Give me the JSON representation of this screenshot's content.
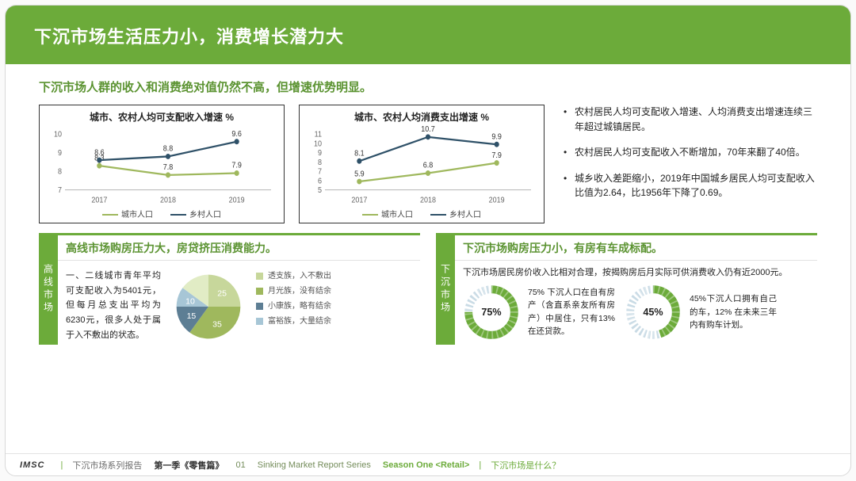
{
  "header": {
    "title": "下沉市场生活压力小，消费增长潜力大"
  },
  "subtitle": "下沉市场人群的收入和消费绝对值仍然不高，但增速优势明显。",
  "chart1": {
    "type": "line",
    "title": "城市、农村人均可支配收入增速 %",
    "categories": [
      "2017",
      "2018",
      "2019"
    ],
    "series": [
      {
        "name": "城市人口",
        "color": "#9fb85d",
        "values": [
          8.3,
          7.8,
          7.9
        ]
      },
      {
        "name": "乡村人口",
        "color": "#2f5168",
        "values": [
          8.6,
          8.8,
          9.6
        ]
      }
    ],
    "ymin": 7,
    "ymax": 10,
    "yticks": [
      7,
      8,
      9,
      10
    ],
    "line_width": 2,
    "marker": "circle",
    "marker_size": 4,
    "label_fontsize": 10,
    "axis_color": "#bdbdbd",
    "background_color": "#ffffff",
    "border_color": "#333333"
  },
  "chart2": {
    "type": "line",
    "title": "城市、农村人均消费支出增速 %",
    "categories": [
      "2017",
      "2018",
      "2019"
    ],
    "series": [
      {
        "name": "城市人口",
        "color": "#9fb85d",
        "values": [
          5.9,
          6.8,
          7.9
        ]
      },
      {
        "name": "乡村人口",
        "color": "#2f5168",
        "values": [
          8.1,
          10.7,
          9.9
        ]
      }
    ],
    "ymin": 5,
    "ymax": 11,
    "yticks": [
      5,
      6,
      7,
      8,
      9,
      10,
      11
    ],
    "line_width": 2,
    "marker": "circle",
    "marker_size": 4,
    "label_fontsize": 10,
    "axis_color": "#bdbdbd",
    "background_color": "#ffffff",
    "border_color": "#333333"
  },
  "bullets": [
    "农村居民人均可支配收入增速、人均消费支出增速连续三年超过城镇居民。",
    "农村居民人均可支配收入不断增加，70年来翻了40倍。",
    "城乡收入差距缩小，2019年中国城乡居民人均可支配收入比值为2.64，比1956年下降了0.69。"
  ],
  "panel_left": {
    "tab": "高线市场",
    "title": "高线市场购房压力大，房贷挤压消费能力。",
    "text": "一、二线城市青年平均可支配收入为5401元，但每月总支出平均为6230元，很多人处于属于入不敷出的状态。",
    "pie": {
      "type": "pie",
      "slices": [
        {
          "label": "透支族，入不敷出",
          "value": 25,
          "color": "#c7d79b",
          "show_label": "25"
        },
        {
          "label": "月光族，没有结余",
          "value": 35,
          "color": "#9fb85d",
          "show_label": "35"
        },
        {
          "label": "小康族，略有结余",
          "value": 15,
          "color": "#5d7e94",
          "show_label": "15"
        },
        {
          "label": "富裕族，大量结余",
          "value": 10,
          "color": "#a7c6d6",
          "show_label": "10"
        },
        {
          "label": "",
          "value": 15,
          "color": "#e1ecc5",
          "show_label": ""
        }
      ],
      "radius": 42,
      "label_color": "#ffffff",
      "label_fontsize": 11
    }
  },
  "panel_right": {
    "tab": "下沉市场",
    "title": "下沉市场购房压力小，有房有车成标配。",
    "text": "下沉市场居民房价收入比相对合理，按揭购房后月实际可供消费收入仍有近2000元。",
    "donut1": {
      "type": "donut",
      "percent": 75,
      "label": "75%",
      "ring_color": "#6cab3a",
      "ring_bg": "#c9dbe5",
      "thickness": 11,
      "radius": 32,
      "desc": "75% 下沉人口在自有房产（含直系亲友所有房产）中居住，只有13% 在还贷款。"
    },
    "donut2": {
      "type": "donut",
      "percent": 45,
      "label": "45%",
      "ring_color": "#6cab3a",
      "ring_bg": "#c9dbe5",
      "thickness": 11,
      "radius": 32,
      "desc": "45%下沉人口拥有自己的车，12% 在未来三年内有购车计划。"
    }
  },
  "footer": {
    "logo": "IMSC",
    "t1": "下沉市场系列报告",
    "t2": "第一季《零售篇》",
    "t3": "01",
    "t4": "Sinking Market Report Series",
    "t5": "Season One <Retail>",
    "t6": "下沉市场是什么？"
  }
}
